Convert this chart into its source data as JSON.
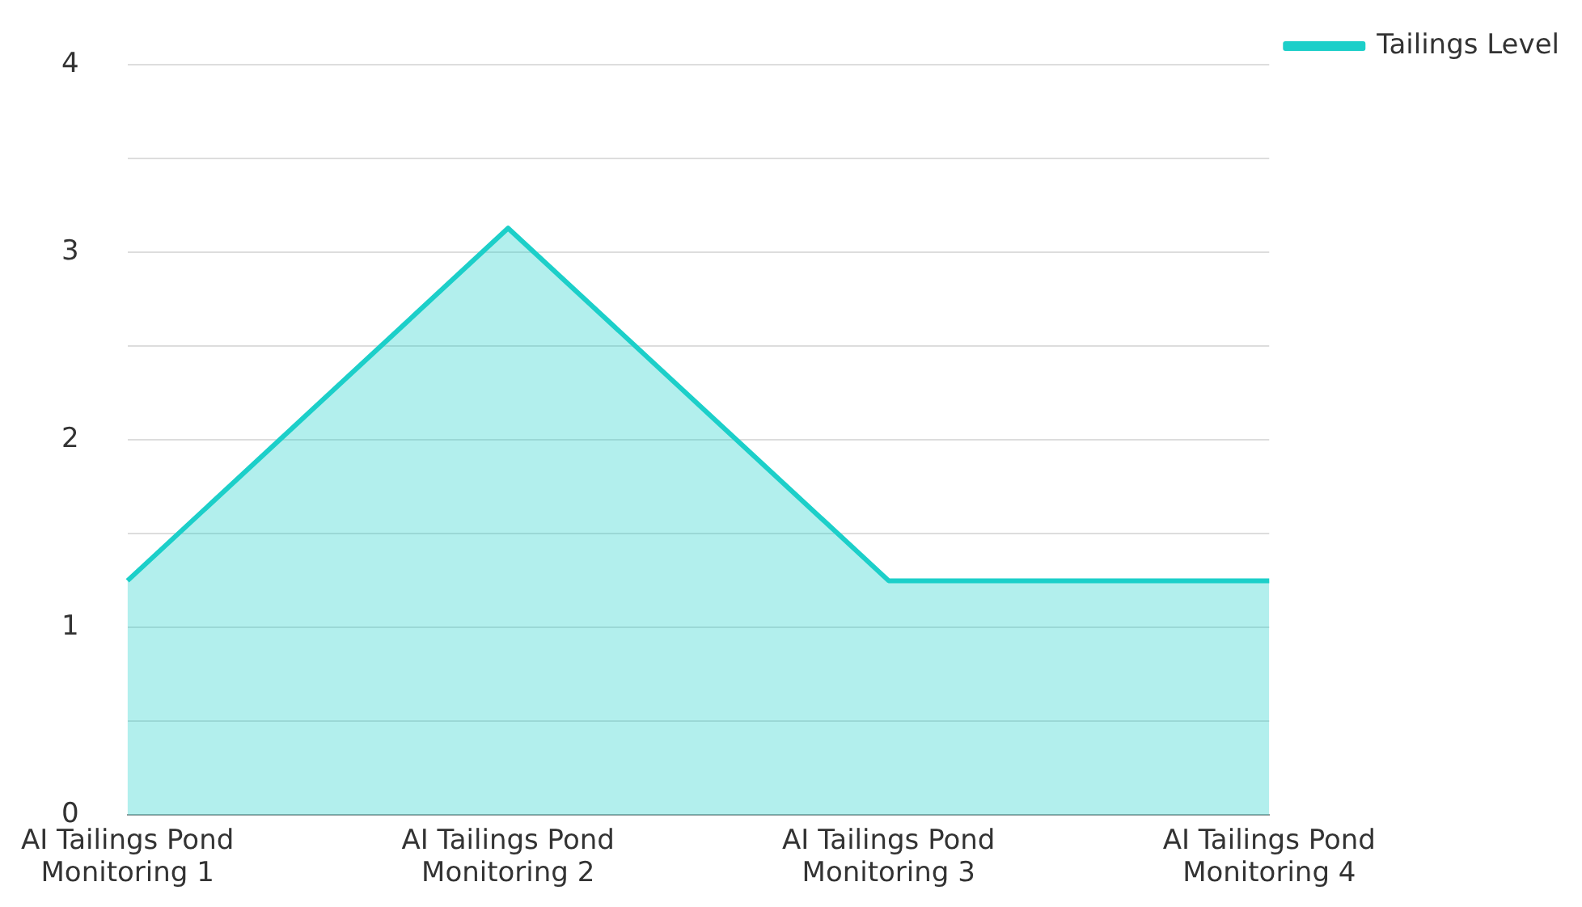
{
  "chart_data": {
    "type": "area",
    "categories": [
      "AI Tailings Pond Monitoring 1",
      "AI Tailings Pond Monitoring 2",
      "AI Tailings Pond Monitoring 3",
      "AI Tailings Pond Monitoring 4"
    ],
    "series": [
      {
        "name": "Tailings Level",
        "color": "#1ccfc9",
        "values": [
          1.25,
          3.13,
          1.25,
          1.25
        ]
      }
    ],
    "ylim": [
      0,
      4
    ],
    "yticks": [
      0,
      {
        "value": 0.5,
        "label": null
      },
      1,
      {
        "value": 1.5,
        "label": null
      },
      2,
      {
        "value": 2.5,
        "label": null
      },
      3,
      {
        "value": 3.5,
        "label": null
      },
      4
    ],
    "grid": "y",
    "legend": "top right"
  }
}
